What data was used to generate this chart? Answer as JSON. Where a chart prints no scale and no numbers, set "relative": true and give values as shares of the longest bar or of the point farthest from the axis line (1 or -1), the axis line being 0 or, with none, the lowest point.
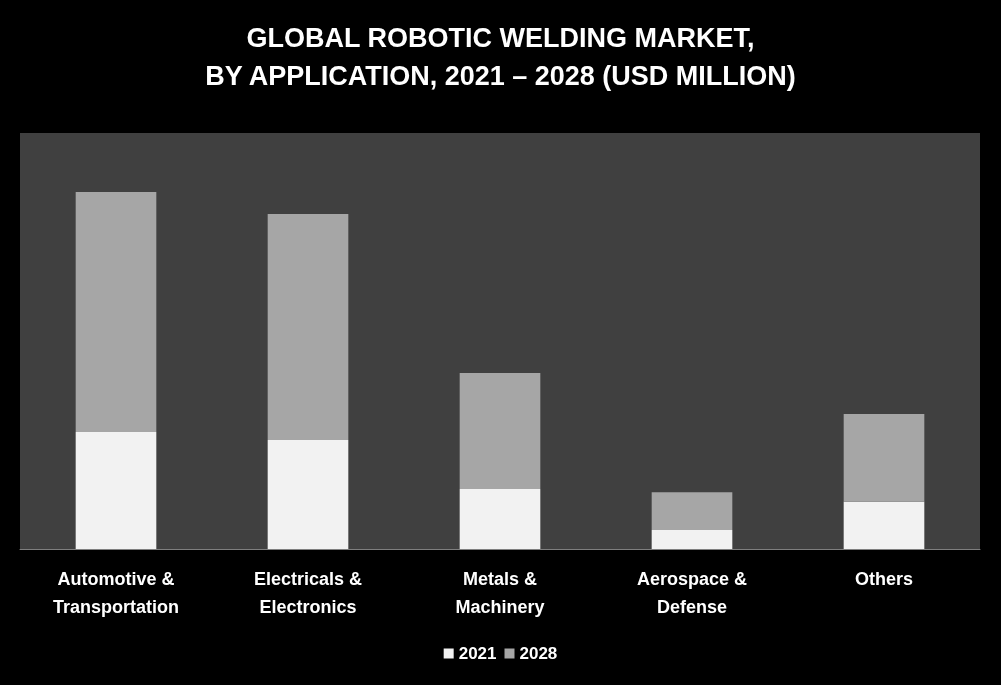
{
  "chart_data": {
    "type": "bar",
    "title": "GLOBAL ROBOTIC WELDING MARKET,\nBY APPLICATION, 2021 – 2028 (USD MILLION)",
    "categories": [
      "Automotive &\nTransportation",
      "Electricals &\nElectronics",
      "Metals &\nMachinery",
      "Aerospace &\nDefense",
      "Others"
    ],
    "relative": true,
    "stacked": true,
    "legend": "bottom",
    "series": [
      {
        "name": "2021",
        "color": "#f2f2f2",
        "values": [
          0.328,
          0.305,
          0.168,
          0.053,
          0.132
        ]
      },
      {
        "name": "2028",
        "color": "#a6a6a6",
        "values": [
          0.672,
          0.633,
          0.325,
          0.106,
          0.246
        ]
      }
    ]
  }
}
